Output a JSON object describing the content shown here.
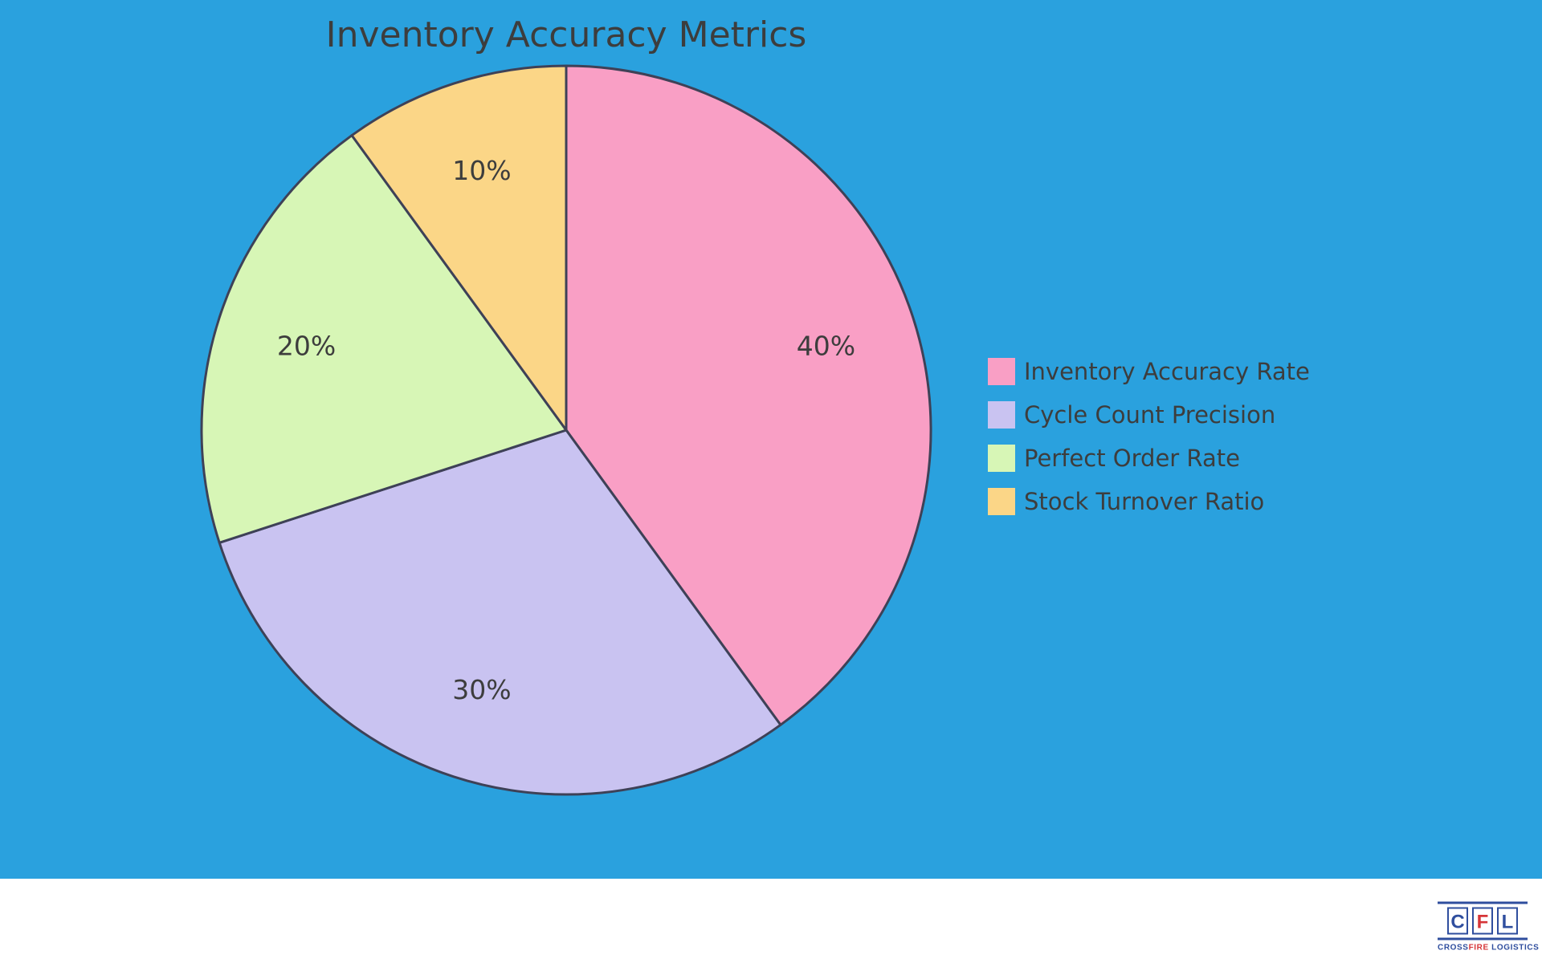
{
  "chart_data": {
    "type": "pie",
    "title": "Inventory Accuracy Metrics",
    "labels": [
      "Inventory Accuracy Rate",
      "Cycle Count Precision",
      "Perfect Order Rate",
      "Stock Turnover Ratio"
    ],
    "values": [
      40,
      30,
      20,
      10
    ],
    "value_unit": "%",
    "slice_labels": [
      "40%",
      "30%",
      "20%",
      "10%"
    ],
    "colors": [
      "#f99fc5",
      "#c9c3f1",
      "#d7f6b6",
      "#fbd687"
    ],
    "edge_color": "#3e4157",
    "background_color": "#2aa1de",
    "text_color": "#3d3d3d",
    "start_angle": "top",
    "direction": "clockwise",
    "legend_position": "right",
    "grid": false
  },
  "legend": {
    "items": [
      {
        "label": "Inventory Accuracy Rate",
        "color": "#f99fc5"
      },
      {
        "label": "Cycle Count Precision",
        "color": "#c9c3f1"
      },
      {
        "label": "Perfect Order Rate",
        "color": "#d7f6b6"
      },
      {
        "label": "Stock Turnover Ratio",
        "color": "#fbd687"
      }
    ]
  },
  "footer": {
    "logo": {
      "letters": [
        {
          "char": "C",
          "color": "#2f4e9e"
        },
        {
          "char": "F",
          "color": "#d63538"
        },
        {
          "char": "L",
          "color": "#2f4e9e"
        }
      ],
      "wordmark": {
        "part1": "CROSS",
        "part2": "FIRE",
        "part3": " LOGISTICS"
      },
      "blue": "#2f4e9e",
      "red": "#d63538"
    }
  }
}
